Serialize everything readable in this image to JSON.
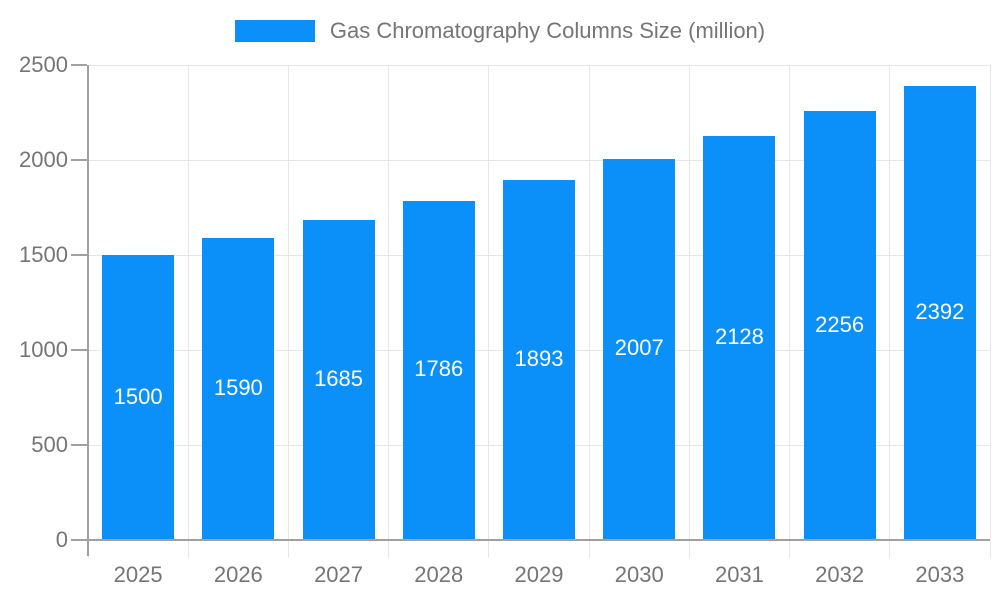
{
  "legend": {
    "label": "Gas Chromatography Columns Size (million)"
  },
  "colors": {
    "bar": "#0a90f8",
    "axis_text": "#757575",
    "bar_label": "#ffffff",
    "grid_line": "#e6e6e6",
    "axis_line": "#a0a0a0",
    "background": "#ffffff"
  },
  "chart_data": {
    "type": "bar",
    "title": "Gas Chromatography Columns Size (million)",
    "categories": [
      "2025",
      "2026",
      "2027",
      "2028",
      "2029",
      "2030",
      "2031",
      "2032",
      "2033"
    ],
    "values": [
      1500,
      1590,
      1685,
      1786,
      1893,
      2007,
      2128,
      2256,
      2392
    ],
    "xlabel": "",
    "ylabel": "",
    "ylim": [
      0,
      2500
    ],
    "yticks": [
      0,
      500,
      1000,
      1500,
      2000,
      2500
    ],
    "grid": true,
    "legend_position": "top-center",
    "value_labels": "inside-center"
  }
}
